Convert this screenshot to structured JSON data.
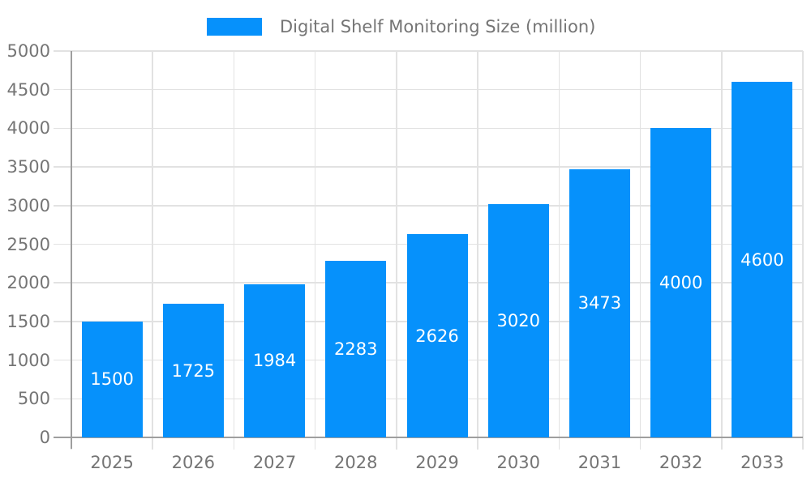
{
  "legend": {
    "label": "Digital Shelf Monitoring Size (million)"
  },
  "chart_data": {
    "type": "bar",
    "title": "Digital Shelf Monitoring Size (million)",
    "categories": [
      "2025",
      "2026",
      "2027",
      "2028",
      "2029",
      "2030",
      "2031",
      "2032",
      "2033"
    ],
    "series": [
      {
        "name": "Digital Shelf Monitoring Size (million)",
        "values": [
          1500,
          1725,
          1984,
          2283,
          2626,
          3020,
          3473,
          4000,
          4600
        ]
      }
    ],
    "xlabel": "",
    "ylabel": "",
    "ylim": [
      0,
      5000
    ],
    "yticks": [
      0,
      500,
      1000,
      1500,
      2000,
      2500,
      3000,
      3500,
      4000,
      4500,
      5000
    ],
    "grid": true,
    "legend_position": "top",
    "value_labels": "inside-center"
  },
  "colors": {
    "bar": "#0691fb",
    "grid": "#e2e2e2",
    "axis": "#9e9e9e",
    "text": "#757575",
    "bar_label": "#ffffff",
    "background": "#ffffff"
  }
}
